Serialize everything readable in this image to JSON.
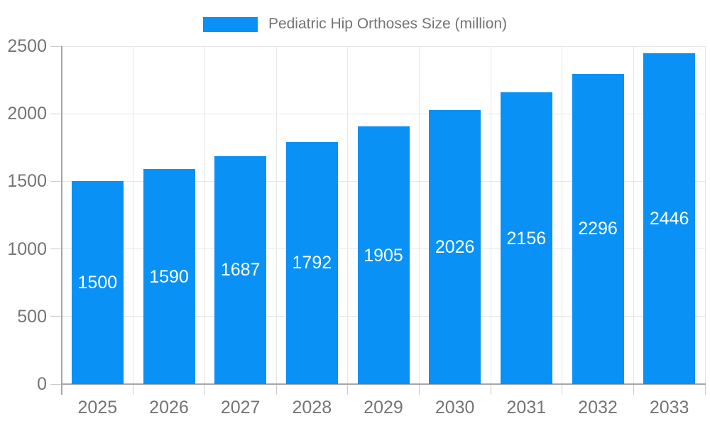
{
  "legend": {
    "label": "Pediatric Hip Orthoses Size (million)"
  },
  "chart_data": {
    "type": "bar",
    "title": "Pediatric Hip Orthoses Size (million)",
    "series_name": "Pediatric Hip Orthoses Size (million)",
    "categories": [
      "2025",
      "2026",
      "2027",
      "2028",
      "2029",
      "2030",
      "2031",
      "2032",
      "2033"
    ],
    "values": [
      1500,
      1590,
      1687,
      1792,
      1905,
      2026,
      2156,
      2296,
      2446
    ],
    "bar_labels": [
      "1500",
      "1590",
      "1687",
      "1792",
      "1905",
      "2026",
      "2156",
      "2296",
      "2446"
    ],
    "ylim": [
      0,
      2500
    ],
    "yticks": [
      0,
      500,
      1000,
      1500,
      2000,
      2500
    ],
    "ytick_labels": [
      "0",
      "500",
      "1000",
      "1500",
      "2000",
      "2500"
    ],
    "grid": true,
    "legend_position": "top",
    "colors": {
      "bar": "#0991f5",
      "bar_label": "#ffffff",
      "axis_text": "#757575",
      "gridline": "#e6e6e6",
      "tick": "#cccccc",
      "axis_line": "#a6a6a6",
      "background": "#ffffff"
    }
  }
}
